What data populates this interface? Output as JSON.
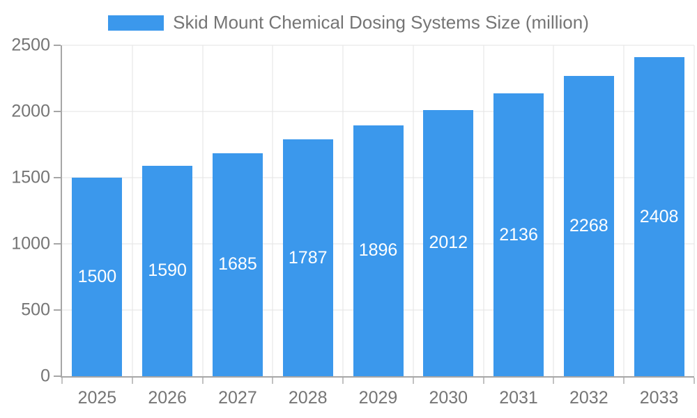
{
  "chart_data": {
    "type": "bar",
    "title": "Skid Mount Chemical Dosing Systems Size (million)",
    "categories": [
      "2025",
      "2026",
      "2027",
      "2028",
      "2029",
      "2030",
      "2031",
      "2032",
      "2033"
    ],
    "series": [
      {
        "name": "Skid Mount Chemical Dosing Systems Size (million)",
        "values": [
          1500,
          1590,
          1685,
          1787,
          1896,
          2012,
          2136,
          2268,
          2408
        ]
      }
    ],
    "xlabel": "",
    "ylabel": "",
    "ylim": [
      0,
      2500
    ],
    "yticks": [
      0,
      500,
      1000,
      1500,
      2000,
      2500
    ],
    "grid": true,
    "legend_position": "top-center",
    "value_labels": "inside-center-white",
    "colors": {
      "bar": "#3b98ec",
      "bar_label": "#ffffff",
      "axis_text": "#757575",
      "grid_line": "#e3e3e3",
      "axis_line": "#a6a6a6",
      "x_tick": "#c2c2c2",
      "background": "#ffffff"
    }
  }
}
